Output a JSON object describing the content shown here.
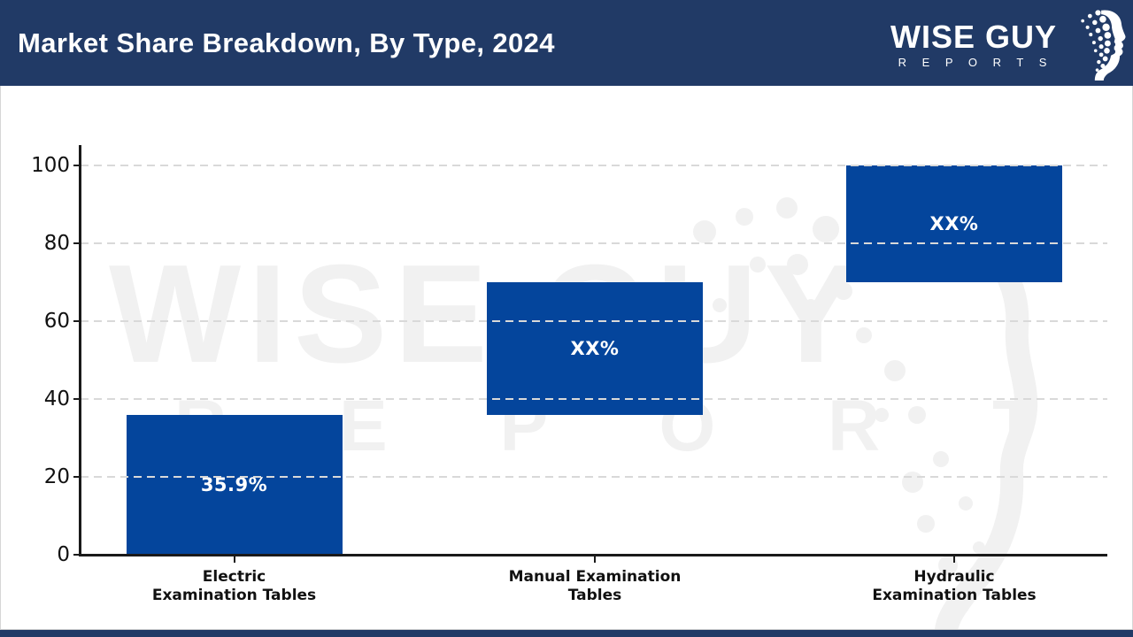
{
  "header": {
    "title": "Market Share Breakdown, By Type, 2024",
    "logo": {
      "name": "WISE GUY",
      "tagline": "R E P O R T S"
    }
  },
  "watermark": {
    "line1": "WISE GUY",
    "line2": "R E P O R T S"
  },
  "chart_data": {
    "type": "bar",
    "subtype": "floating-waterfall",
    "title": "Market Share Breakdown, By Type, 2024",
    "categories": [
      {
        "lines": [
          "Electric",
          "Examination Tables"
        ]
      },
      {
        "lines": [
          "Manual Examination",
          "Tables"
        ]
      },
      {
        "lines": [
          "Hydraulic",
          "Examination Tables"
        ]
      }
    ],
    "segments": [
      {
        "category": "Electric Examination Tables",
        "start": 0,
        "end": 35.9,
        "label": "35.9%"
      },
      {
        "category": "Manual Examination Tables",
        "start": 35.9,
        "end": 69.9,
        "label": "XX%"
      },
      {
        "category": "Hydraulic Examination Tables",
        "start": 69.9,
        "end": 100,
        "label": "XX%"
      }
    ],
    "yticks": [
      0,
      20,
      40,
      60,
      80,
      100
    ],
    "ylim": [
      0,
      105
    ],
    "grid": "horizontal-dashed",
    "legend": "none"
  },
  "colors": {
    "banner": "#213a66",
    "bar": "#04459c",
    "grid": "#d9d9d9",
    "axis": "#1a1a1a",
    "tick_text": "#111111",
    "bar_label": "#ffffff",
    "watermark": "#f1f1f1"
  }
}
